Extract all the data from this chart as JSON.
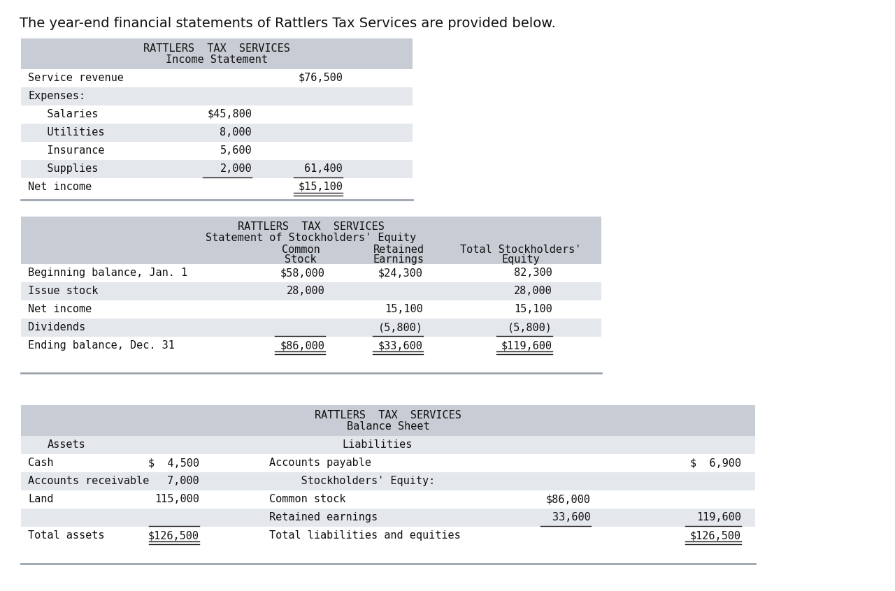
{
  "intro_text": "The year-end financial statements of Rattlers Tax Services are provided below.",
  "bg_color": "#ffffff",
  "header_bg": "#c8ccd4",
  "row_alt_bg": "#e4e8ed",
  "row_main_bg": "#ffffff",
  "income_statement": {
    "title1": "RATTLERS  TAX  SERVICES",
    "title2": "Income Statement",
    "rows": [
      {
        "label": "Service revenue",
        "col1": "",
        "col2": "$76,500",
        "ul1": false,
        "ul2": false,
        "dul2": false
      },
      {
        "label": "Expenses:",
        "col1": "",
        "col2": "",
        "ul1": false,
        "ul2": false,
        "dul2": false
      },
      {
        "label": "   Salaries",
        "col1": "$45,800",
        "col2": "",
        "ul1": false,
        "ul2": false,
        "dul2": false
      },
      {
        "label": "   Utilities",
        "col1": "8,000",
        "col2": "",
        "ul1": false,
        "ul2": false,
        "dul2": false
      },
      {
        "label": "   Insurance",
        "col1": "5,600",
        "col2": "",
        "ul1": false,
        "ul2": false,
        "dul2": false
      },
      {
        "label": "   Supplies",
        "col1": "2,000",
        "col2": "61,400",
        "ul1": true,
        "ul2": true,
        "dul2": false
      },
      {
        "label": "Net income",
        "col1": "",
        "col2": "$15,100",
        "ul1": false,
        "ul2": false,
        "dul2": true
      }
    ]
  },
  "stockholders_equity": {
    "title1": "RATTLERS  TAX  SERVICES",
    "title2": "Statement of Stockholders' Equity",
    "hdr_c1": "Common",
    "hdr_c1b": "Stock",
    "hdr_c2": "Retained",
    "hdr_c2b": "Earnings",
    "hdr_c3": "Total Stockholders'",
    "hdr_c3b": "Equity",
    "rows": [
      {
        "label": "Beginning balance, Jan. 1",
        "c1": "$58,000",
        "c2": "$24,300",
        "c3": "82,300",
        "ul": false,
        "dul": false
      },
      {
        "label": "Issue stock",
        "c1": "28,000",
        "c2": "",
        "c3": "28,000",
        "ul": false,
        "dul": false
      },
      {
        "label": "Net income",
        "c1": "",
        "c2": "15,100",
        "c3": "15,100",
        "ul": false,
        "dul": false
      },
      {
        "label": "Dividends",
        "c1": "",
        "c2": "(5,800)",
        "c3": "(5,800)",
        "ul": true,
        "dul": false
      },
      {
        "label": "Ending balance, Dec. 31",
        "c1": "$86,000",
        "c2": "$33,600",
        "c3": "$119,600",
        "ul": false,
        "dul": true
      }
    ]
  },
  "balance_sheet": {
    "title1": "RATTLERS  TAX  SERVICES",
    "title2": "Balance Sheet",
    "assets_hdr": "Assets",
    "liab_hdr": "Liabilities",
    "assets": [
      {
        "label": "Cash",
        "val": "$  4,500",
        "ul": false,
        "dul": false
      },
      {
        "label": "Accounts receivable",
        "val": "7,000",
        "ul": false,
        "dul": false
      },
      {
        "label": "Land",
        "val": "115,000",
        "ul": false,
        "dul": false
      },
      {
        "label": "",
        "val": "",
        "ul": true,
        "dul": false
      },
      {
        "label": "Total assets",
        "val": "$126,500",
        "ul": false,
        "dul": true
      }
    ],
    "liabilities": [
      {
        "label": "Accounts payable",
        "c1": "",
        "c2": "$  6,900",
        "ul1": false,
        "ul2": false,
        "dul2": false
      },
      {
        "label": "     Stockholders' Equity:",
        "c1": "",
        "c2": "",
        "ul1": false,
        "ul2": false,
        "dul2": false
      },
      {
        "label": "Common stock",
        "c1": "$86,000",
        "c2": "",
        "ul1": false,
        "ul2": false,
        "dul2": false
      },
      {
        "label": "Retained earnings",
        "c1": "33,600",
        "c2": "119,600",
        "ul1": true,
        "ul2": true,
        "dul2": false
      },
      {
        "label": "Total liabilities and equities",
        "c1": "",
        "c2": "$126,500",
        "ul1": false,
        "ul2": false,
        "dul2": true
      }
    ]
  }
}
